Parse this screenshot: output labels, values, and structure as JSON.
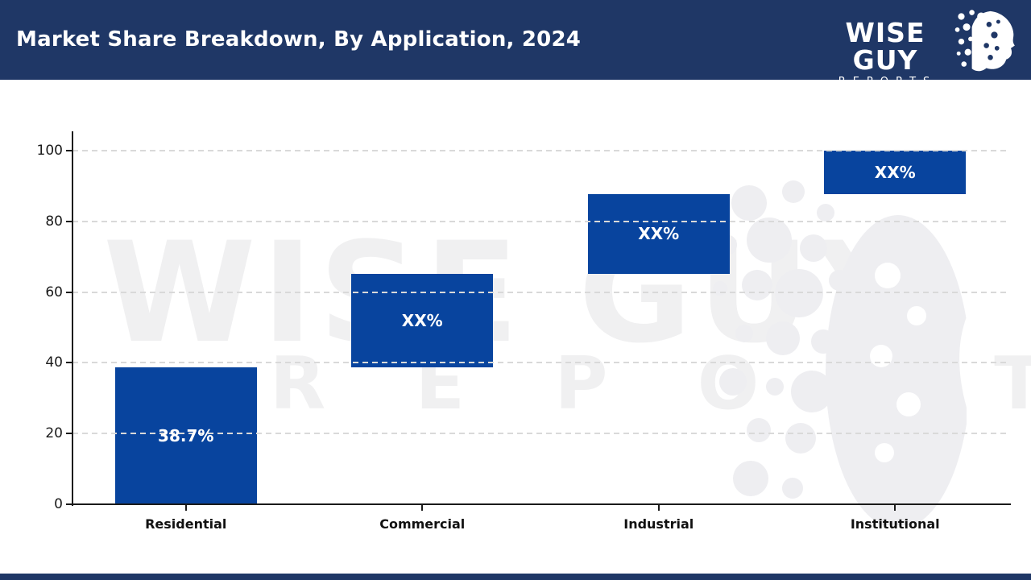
{
  "header": {
    "title": "Market Share Breakdown, By Application, 2024",
    "logo": {
      "line1": "WISE GUY",
      "line2": "REPORTS"
    },
    "bg_color": "#1F3766"
  },
  "watermark": {
    "line1": "WISE GUY",
    "line2": "R E P O R T S"
  },
  "footer": {
    "bg_color": "#1F3766"
  },
  "chart_data": {
    "type": "bar",
    "subtype": "floating stacked-breakdown bars (waterfall style)",
    "title": "Market Share Breakdown, By Application, 2024",
    "categories": [
      "Residential",
      "Commercial",
      "Industrial",
      "Institutional"
    ],
    "segments": [
      {
        "category": "Residential",
        "start": 0,
        "end": 38.7,
        "label": "38.7%"
      },
      {
        "category": "Commercial",
        "start": 38.7,
        "end": 65.2,
        "label": "XX%"
      },
      {
        "category": "Industrial",
        "start": 65.2,
        "end": 87.7,
        "label": "XX%"
      },
      {
        "category": "Institutional",
        "start": 87.7,
        "end": 100,
        "label": "XX%"
      }
    ],
    "xlabel": "",
    "ylabel": "",
    "ylim": [
      0,
      100
    ],
    "yticks": [
      0,
      20,
      40,
      60,
      80,
      100
    ],
    "grid": "horizontal-dashed",
    "legend": "none",
    "bar_color": "#08449E",
    "bar_label_color": "#FFFFFF",
    "axis_color": "#1a1a1a"
  }
}
